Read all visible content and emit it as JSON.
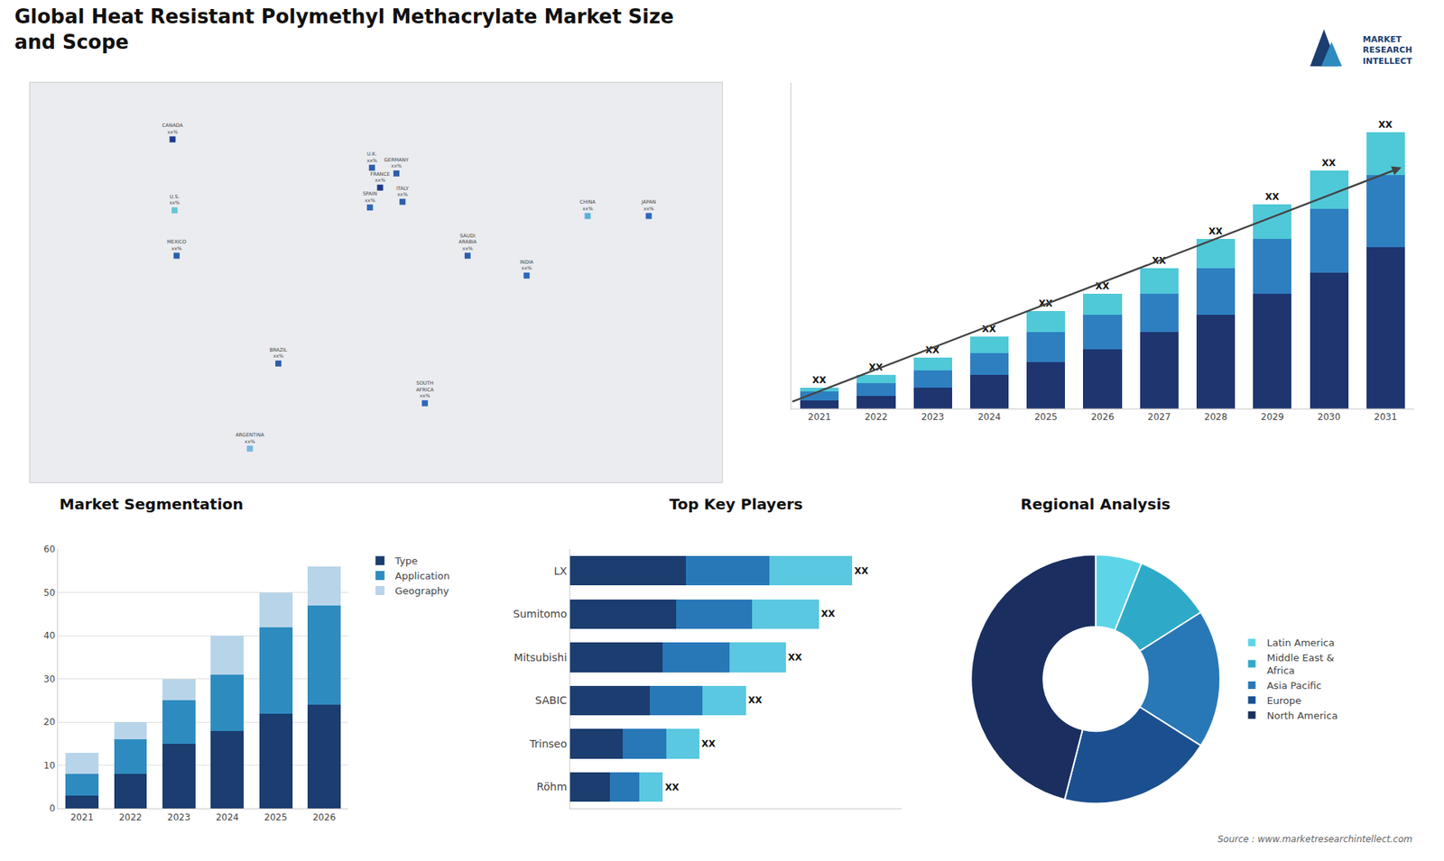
{
  "chart_data": [
    {
      "type": "map",
      "categories": [
        "CANADA\nxx%",
        "U.S.\nxx%",
        "MEXICO\nxx%",
        "BRAZIL\nxx%",
        "ARGENTINA\nxx%",
        "U.K.\nxx%",
        "FRANCE\nxx%",
        "SPAIN\nxx%",
        "GERMANY\nxx%",
        "ITALY\nxx%",
        "SAUDI\nARABIA\nxx%",
        "SOUTH\nAFRICA\nxx%",
        "INDIA\nxx%",
        "CHINA\nxx%",
        "JAPAN\nxx%"
      ],
      "x": [
        -100,
        -99,
        -98,
        -48,
        -62,
        -2,
        2,
        -3,
        10,
        13,
        45,
        24,
        74,
        104,
        134
      ],
      "y": [
        63,
        38,
        22,
        -16,
        -46,
        53,
        46,
        39,
        51,
        41,
        22,
        -30,
        15,
        36,
        36
      ],
      "colors": [
        "#1e3a8a",
        "#6ac4d8",
        "#2e5eaa",
        "#2e5eaa",
        "#7ab8d8",
        "#2e5eaa",
        "#1e3a8a",
        "#2e68b8",
        "#2e5eaa",
        "#2e5eaa",
        "#2e5eaa",
        "#2e68b8",
        "#2e68b8",
        "#5ab0d8",
        "#2e68b8"
      ],
      "color": "#d0d5de",
      "xlim": [
        -170,
        170
      ],
      "ylim": [
        -58,
        83
      ],
      "tick_labels": false
    },
    {
      "type": "bar",
      "title": "Global Heat Resistant Polymethyl Methacrylate Market Size\nand Scope",
      "annotations": [
        "MARKET\nRESEARCH\nINTELLECT",
        "Source : www.marketresearchintellect.com"
      ],
      "categories": [
        "2021",
        "2022",
        "2023",
        "2024",
        "2025",
        "2026",
        "2027",
        "2028",
        "2029",
        "2030",
        "2031"
      ],
      "stacked": true,
      "series": [
        {
          "color": "#1e3570",
          "values": [
            2,
            3,
            5,
            8,
            11,
            14,
            18,
            22,
            27,
            32,
            38
          ]
        },
        {
          "color": "#2e7fc0",
          "values": [
            2,
            3,
            4,
            5,
            7,
            8,
            9,
            11,
            13,
            15,
            17
          ]
        },
        {
          "color": "#4fc8d8",
          "values": [
            1,
            2,
            3,
            4,
            5,
            5,
            6,
            7,
            8,
            9,
            10
          ],
          "value_labels": [
            "XX",
            "XX",
            "XX",
            "XX",
            "XX",
            "XX",
            "XX",
            "XX",
            "XX",
            "XX",
            "XX"
          ]
        }
      ],
      "ylim": [
        0,
        76.7
      ],
      "tick_labels": "x"
    },
    {
      "type": "bar",
      "title": "Market Segmentation",
      "categories": [
        "2021",
        "2022",
        "2023",
        "2024",
        "2025",
        "2026"
      ],
      "stacked": true,
      "series": [
        {
          "name": "Type",
          "color": "#1b3d6f",
          "values": [
            3,
            8,
            15,
            18,
            22,
            24
          ]
        },
        {
          "name": "Application",
          "color": "#2e8bc0",
          "values": [
            5,
            8,
            10,
            13,
            20,
            23
          ]
        },
        {
          "name": "Geography",
          "color": "#b8d4e8",
          "values": [
            5,
            4,
            5,
            9,
            8,
            9
          ]
        }
      ],
      "ylim": [
        0,
        60
      ],
      "yticks": [
        0,
        10,
        20,
        30,
        40,
        50,
        60
      ],
      "grid": true,
      "legend": "right"
    },
    {
      "type": "bar",
      "title": "Top Key Players",
      "orientation": "horizontal",
      "categories": [
        "LX",
        "Sumitomo",
        "Mitsubishi",
        "SABIC",
        "Trinseo",
        "Röhm"
      ],
      "stacked": true,
      "series": [
        {
          "color": "#1b3d6f",
          "values": [
            3.5,
            3.2,
            2.8,
            2.4,
            1.6,
            1.2
          ]
        },
        {
          "color": "#2878b8",
          "values": [
            2.5,
            2.3,
            2.0,
            1.6,
            1.3,
            0.9
          ]
        },
        {
          "color": "#5ac8e0",
          "values": [
            2.5,
            2.0,
            1.7,
            1.3,
            1.0,
            0.7
          ],
          "value_labels": [
            "XX",
            "XX",
            "XX",
            "XX",
            "XX",
            "XX"
          ]
        }
      ],
      "xlim": [
        0,
        10
      ],
      "tick_labels": "y"
    },
    {
      "type": "pie",
      "title": "Regional Analysis",
      "categories": [
        "Latin America",
        "Middle East &\nAfrica",
        "Asia Pacific",
        "Europe",
        "North America"
      ],
      "values": [
        6,
        10,
        18,
        20,
        46
      ],
      "colors": [
        "#5dd4e8",
        "#2eaac8",
        "#2878b8",
        "#1b5090",
        "#1a2f60"
      ],
      "legend": "right"
    }
  ]
}
